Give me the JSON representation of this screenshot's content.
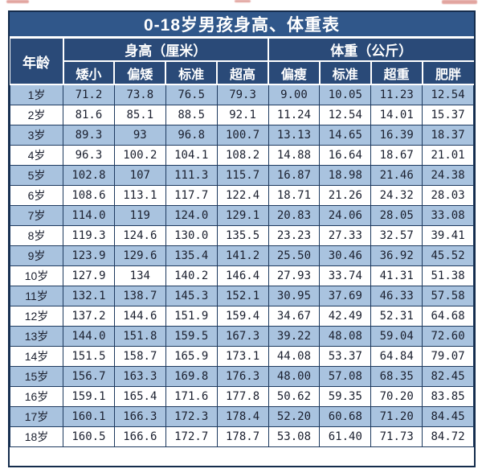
{
  "colors": {
    "title_bar": "#30578a",
    "header_bg": "#2a4a78",
    "row_alt": "#a9c3df",
    "row_plain": "#ffffff",
    "grid_line": "#1e3a5f",
    "frame_border": "#142c4c",
    "header_text": "#ffffff",
    "body_text": "#1a1f2e",
    "artifact_red": "#c13a2e"
  },
  "chart_data": {
    "type": "table",
    "title": "0-18岁男孩身高、体重表",
    "corner_header": "年龄",
    "column_groups": [
      {
        "label": "身高（厘米）",
        "span": 4
      },
      {
        "label": "体重（公斤）",
        "span": 4
      }
    ],
    "columns": [
      "年龄",
      "矮小",
      "偏矮",
      "标准",
      "超高",
      "偏瘦",
      "标准",
      "超重",
      "肥胖"
    ],
    "rows": [
      [
        "1岁",
        "71.2",
        "73.8",
        "76.5",
        "79.3",
        "9.00",
        "10.05",
        "11.23",
        "12.54"
      ],
      [
        "2岁",
        "81.6",
        "85.1",
        "88.5",
        "92.1",
        "11.24",
        "12.54",
        "14.01",
        "15.37"
      ],
      [
        "3岁",
        "89.3",
        "93",
        "96.8",
        "100.7",
        "13.13",
        "14.65",
        "16.39",
        "18.37"
      ],
      [
        "4岁",
        "96.3",
        "100.2",
        "104.1",
        "108.2",
        "14.88",
        "16.64",
        "18.67",
        "21.01"
      ],
      [
        "5岁",
        "102.8",
        "107",
        "111.3",
        "115.7",
        "16.87",
        "18.98",
        "21.46",
        "24.38"
      ],
      [
        "6岁",
        "108.6",
        "113.1",
        "117.7",
        "122.4",
        "18.71",
        "21.26",
        "24.32",
        "28.03"
      ],
      [
        "7岁",
        "114.0",
        "119",
        "124.0",
        "129.1",
        "20.83",
        "24.06",
        "28.05",
        "33.08"
      ],
      [
        "8岁",
        "119.3",
        "124.6",
        "130.0",
        "135.5",
        "23.23",
        "27.33",
        "32.57",
        "39.41"
      ],
      [
        "9岁",
        "123.9",
        "129.6",
        "135.4",
        "141.2",
        "25.50",
        "30.46",
        "36.92",
        "45.52"
      ],
      [
        "10岁",
        "127.9",
        "134",
        "140.2",
        "146.4",
        "27.93",
        "33.74",
        "41.31",
        "51.38"
      ],
      [
        "11岁",
        "132.1",
        "138.7",
        "145.3",
        "152.1",
        "30.95",
        "37.69",
        "46.33",
        "57.58"
      ],
      [
        "12岁",
        "137.2",
        "144.6",
        "151.9",
        "159.4",
        "34.67",
        "42.49",
        "52.31",
        "64.68"
      ],
      [
        "13岁",
        "144.0",
        "151.8",
        "159.5",
        "167.3",
        "39.22",
        "48.08",
        "59.04",
        "72.60"
      ],
      [
        "14岁",
        "151.5",
        "158.7",
        "165.9",
        "173.1",
        "44.08",
        "53.37",
        "64.84",
        "79.07"
      ],
      [
        "15岁",
        "156.7",
        "163.3",
        "169.8",
        "176.3",
        "48.00",
        "57.08",
        "68.35",
        "82.45"
      ],
      [
        "16岁",
        "159.1",
        "165.4",
        "171.6",
        "177.8",
        "50.62",
        "59.35",
        "70.20",
        "83.85"
      ],
      [
        "17岁",
        "160.1",
        "166.3",
        "172.3",
        "178.4",
        "52.20",
        "60.68",
        "71.20",
        "84.45"
      ],
      [
        "18岁",
        "160.5",
        "166.6",
        "172.7",
        "178.7",
        "53.08",
        "61.40",
        "71.73",
        "84.72"
      ]
    ]
  }
}
